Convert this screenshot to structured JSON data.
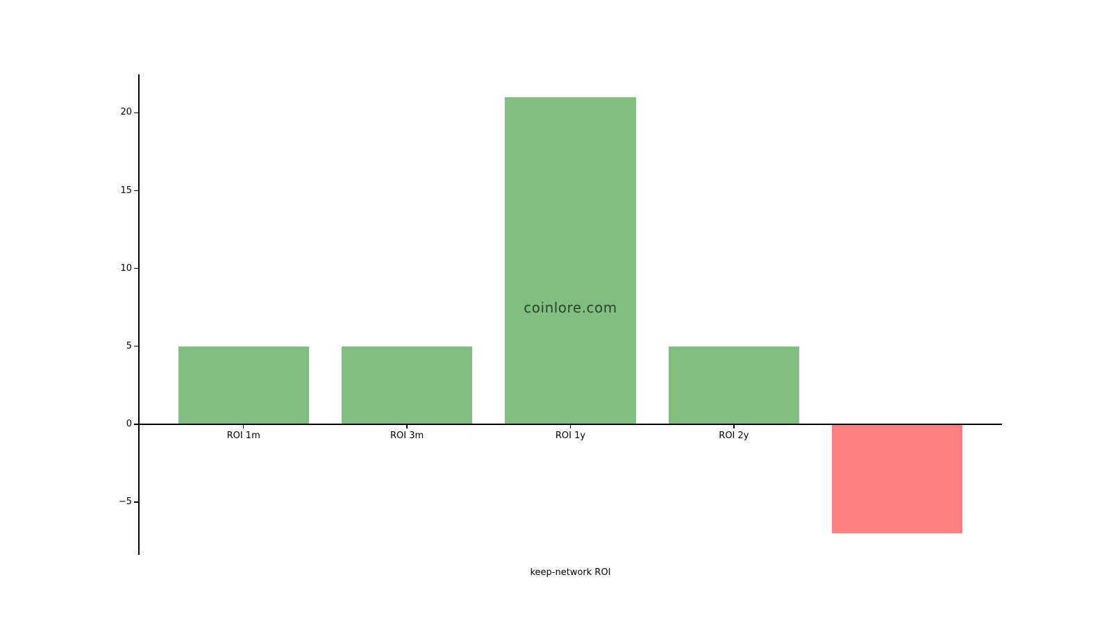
{
  "page": {
    "background": "#ffffff"
  },
  "chart_data": {
    "type": "bar",
    "title": "keep-network ROI",
    "watermark": "coinlore.com",
    "categories": [
      "ROI 1m",
      "ROI 3m",
      "ROI 1y",
      "ROI 2y",
      ""
    ],
    "values": [
      5,
      5,
      21,
      5,
      -7
    ],
    "bar_colors": [
      "#80bf80",
      "#80bf80",
      "#80bf80",
      "#80bf80",
      "#ff8080"
    ],
    "positive_color": "#80bf80",
    "negative_color": "#ff8080",
    "bar_width": 0.8,
    "xlabel": "",
    "ylabel": "",
    "yticks": [
      {
        "label": "20",
        "value": 20
      },
      {
        "label": "15",
        "value": 15
      },
      {
        "label": "10",
        "value": 10
      },
      {
        "label": "5",
        "value": 5
      },
      {
        "label": "0",
        "value": 0
      },
      {
        "label": "−5",
        "value": -5
      }
    ],
    "ylim": [
      -8.39,
      22.47
    ],
    "xlim": [
      -0.64,
      4.64
    ],
    "grid": false,
    "legend_position": "none",
    "axis_color": "#000000",
    "text_color": "#000000"
  }
}
